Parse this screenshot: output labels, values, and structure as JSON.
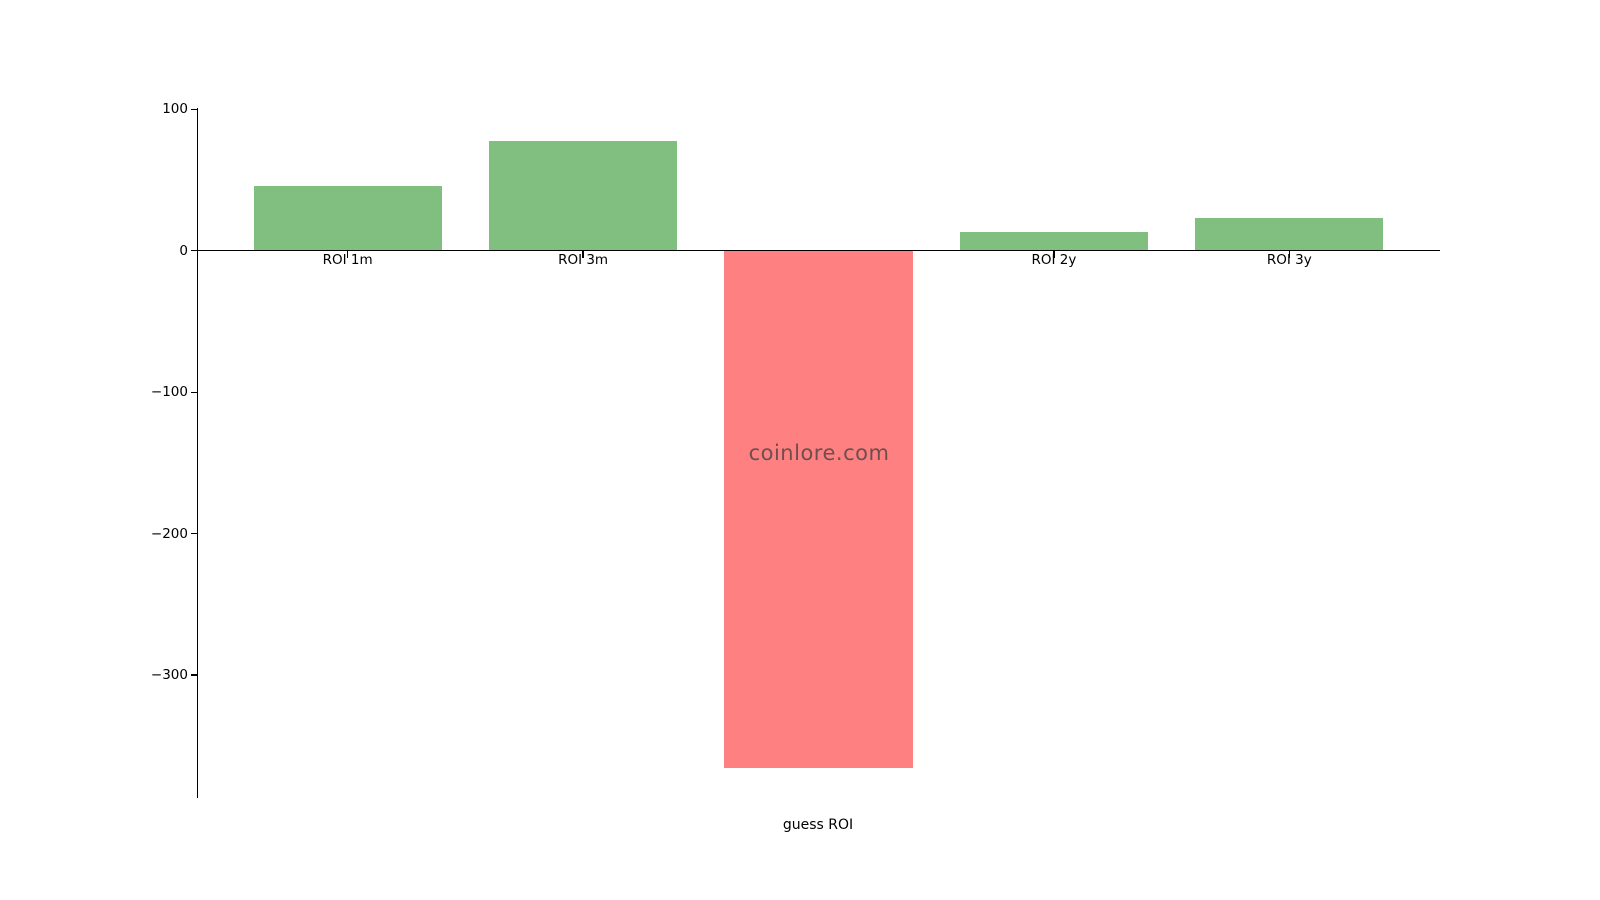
{
  "page": {
    "background_color": "#ffffff"
  },
  "chart_data": {
    "type": "bar",
    "title": "",
    "xlabel": "guess ROI",
    "ylabel": "",
    "watermark": "coinlore.com",
    "categories": [
      "ROI 1m",
      "ROI 3m",
      "",
      "ROI 2y",
      "ROI 3y"
    ],
    "values": [
      46,
      78,
      -366,
      13,
      23
    ],
    "bar_colors": [
      "#80bf80",
      "#80bf80",
      "#ff8080",
      "#80bf80",
      "#80bf80"
    ],
    "positive_color": "#80bf80",
    "negative_color": "#ff8080",
    "axis_color": "#000000",
    "text_color": "#000000",
    "watermark_color": "#6e4f50",
    "ytick_values": [
      100,
      0,
      -100,
      -200,
      -300
    ],
    "ytick_labels": [
      "100",
      "0",
      "−100",
      "−200",
      "−300"
    ],
    "ylim": [
      -387,
      101
    ],
    "grid": false,
    "legend": false
  }
}
